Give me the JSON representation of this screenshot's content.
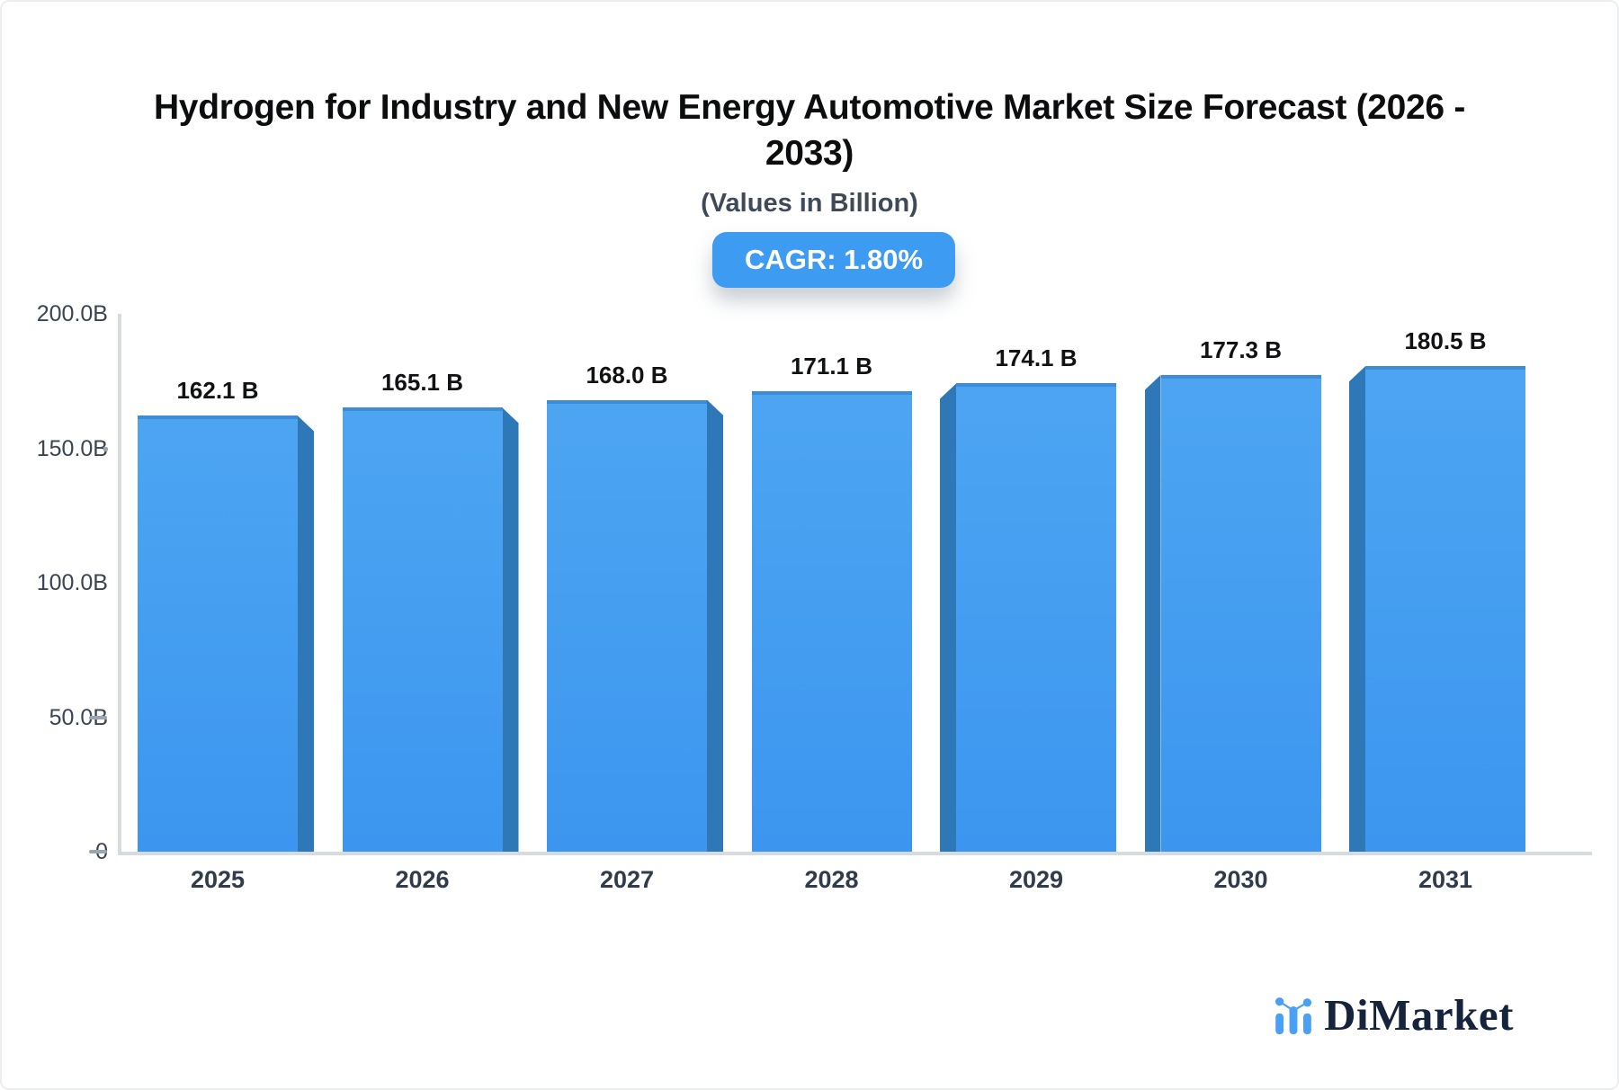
{
  "badge": {
    "label": "CAGR: 1.80%",
    "bg": "#3d9bf2",
    "text_color": "#ffffff"
  },
  "chart_data": {
    "type": "bar",
    "title": "Hydrogen for Industry and New Energy Automotive Market Size Forecast (2026 - 2033)",
    "subtitle": "(Values in Billion)",
    "categories": [
      "2025",
      "2026",
      "2027",
      "2028",
      "2029",
      "2030",
      "2031"
    ],
    "values": [
      162.1,
      165.1,
      168.0,
      171.1,
      174.1,
      177.3,
      180.5
    ],
    "bar_labels": [
      "162.1 B",
      "165.1 B",
      "168.0 B",
      "171.1 B",
      "174.1 B",
      "177.3 B",
      "180.5 B"
    ],
    "y_tick_labels": [
      "0",
      "50.0B",
      "100.0B",
      "150.0B",
      "200.0B"
    ],
    "ylim": [
      0,
      200
    ],
    "xlabel": "",
    "ylabel": "",
    "grid": false,
    "legend": "none",
    "colors": {
      "bar_face_top": "#4da5f2",
      "bar_face_bottom": "#3c96ef",
      "bar_top_edge": "#3e8cd6",
      "bar_side": "#2e78b7",
      "axis_line": "#d6dae1",
      "y_tick_label": "#3a4554",
      "x_tick_label": "#303c4c",
      "value_label": "#101214"
    }
  },
  "footer": {
    "brand": "DiMarket",
    "logo_color": "#4aa0f5",
    "text_color": "#16233d"
  }
}
